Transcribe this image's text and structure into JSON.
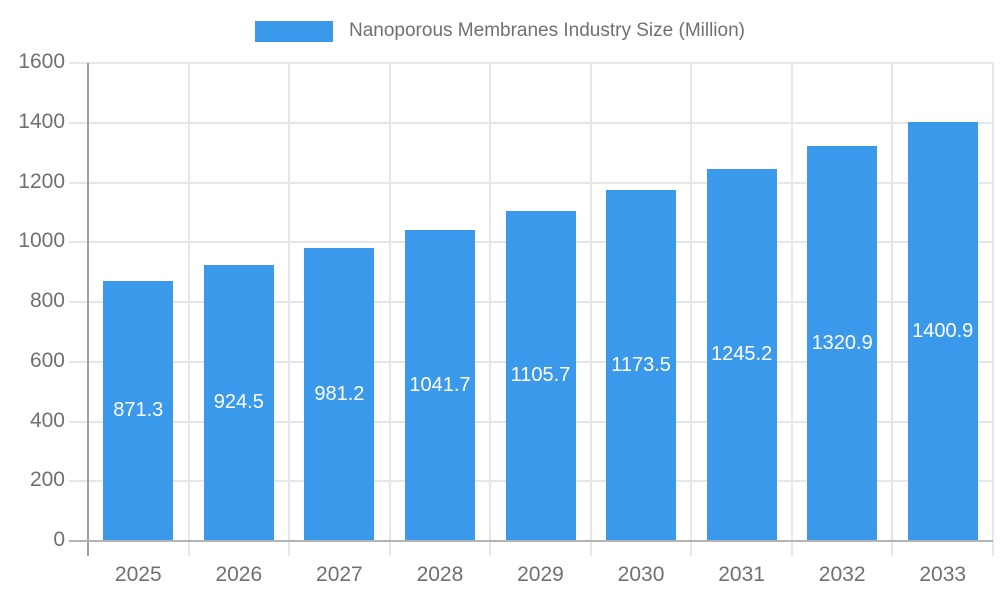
{
  "chart_data": {
    "type": "bar",
    "title": "Nanoporous Membranes Industry Size (Million)",
    "legend_position": "top",
    "categories": [
      "2025",
      "2026",
      "2027",
      "2028",
      "2029",
      "2030",
      "2031",
      "2032",
      "2033"
    ],
    "values": [
      871.3,
      924.5,
      981.2,
      1041.7,
      1105.7,
      1173.5,
      1245.2,
      1320.9,
      1400.9
    ],
    "xlabel": "",
    "ylabel": "",
    "ylim": [
      0,
      1600
    ],
    "yticks": [
      0,
      200,
      400,
      600,
      800,
      1000,
      1200,
      1400,
      1600
    ],
    "grid": true,
    "bar_color": "#3B99EC",
    "value_label_color": "#ffffff",
    "axis_label_color": "#707070",
    "grid_color": "#e6e6e6",
    "axis_line_color": "#9e9e9e",
    "baseline_color": "#b3b3b3"
  }
}
